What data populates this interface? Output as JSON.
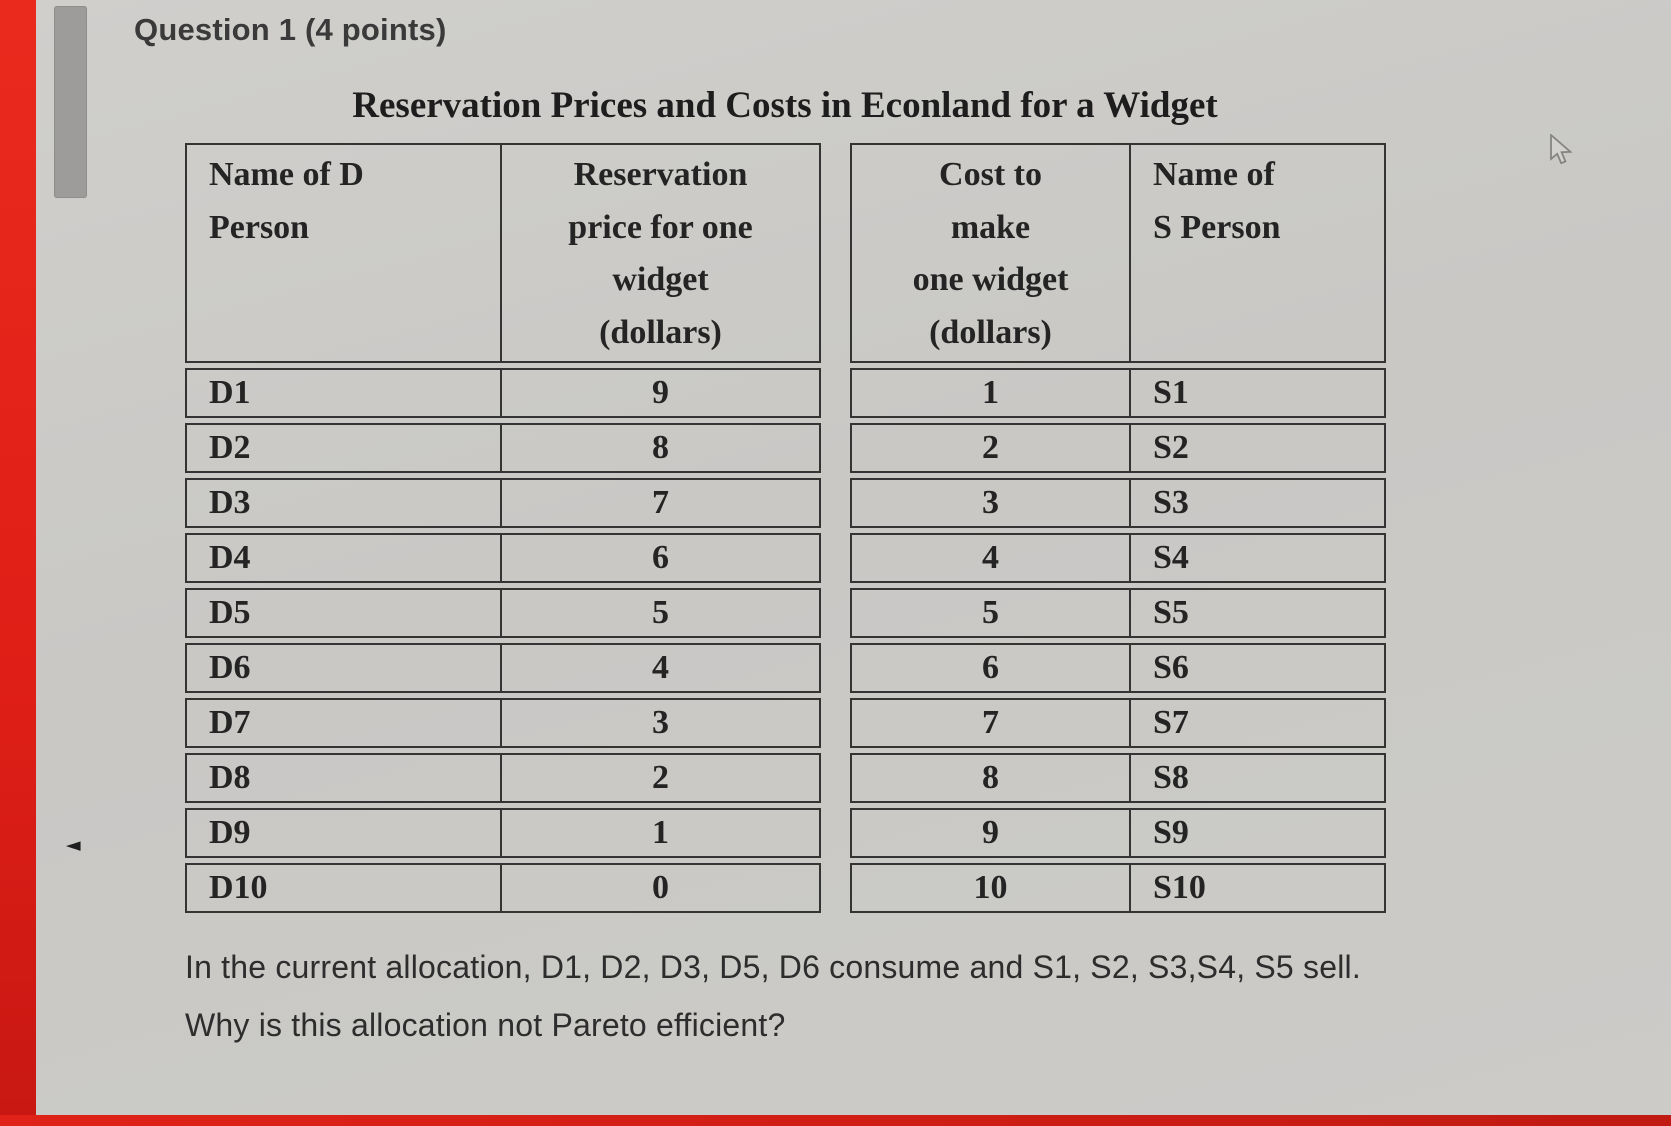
{
  "page": {
    "question_header": "Question 1 (4 points)",
    "table_title": "Reservation Prices and Costs in Econland for a Widget",
    "question_line1": "In the current allocation, D1, D2, D3, D5, D6 consume and S1, S2, S3,S4, S5 sell.",
    "question_line2": "Why is this allocation not Pareto efficient?"
  },
  "demand_table": {
    "header_name": "Name of D\nPerson",
    "header_price": "Reservation\nprice for one\nwidget\n(dollars)",
    "rows": [
      [
        "D1",
        "9"
      ],
      [
        "D2",
        "8"
      ],
      [
        "D3",
        "7"
      ],
      [
        "D4",
        "6"
      ],
      [
        "D5",
        "5"
      ],
      [
        "D6",
        "4"
      ],
      [
        "D7",
        "3"
      ],
      [
        "D8",
        "2"
      ],
      [
        "D9",
        "1"
      ],
      [
        "D10",
        "0"
      ]
    ]
  },
  "supply_table": {
    "header_cost": "Cost to\nmake\none widget\n(dollars)",
    "header_name": "Name of\nS Person",
    "rows": [
      [
        "1",
        "S1"
      ],
      [
        "2",
        "S2"
      ],
      [
        "3",
        "S3"
      ],
      [
        "4",
        "S4"
      ],
      [
        "5",
        "S5"
      ],
      [
        "6",
        "S6"
      ],
      [
        "7",
        "S7"
      ],
      [
        "8",
        "S8"
      ],
      [
        "9",
        "S9"
      ],
      [
        "10",
        "S10"
      ]
    ]
  },
  "icons": {
    "triangle_marker_glyph": "◄"
  },
  "colors": {
    "edge_red": "#e02218",
    "background": "#cac9c6",
    "table_ink": "#242424"
  }
}
